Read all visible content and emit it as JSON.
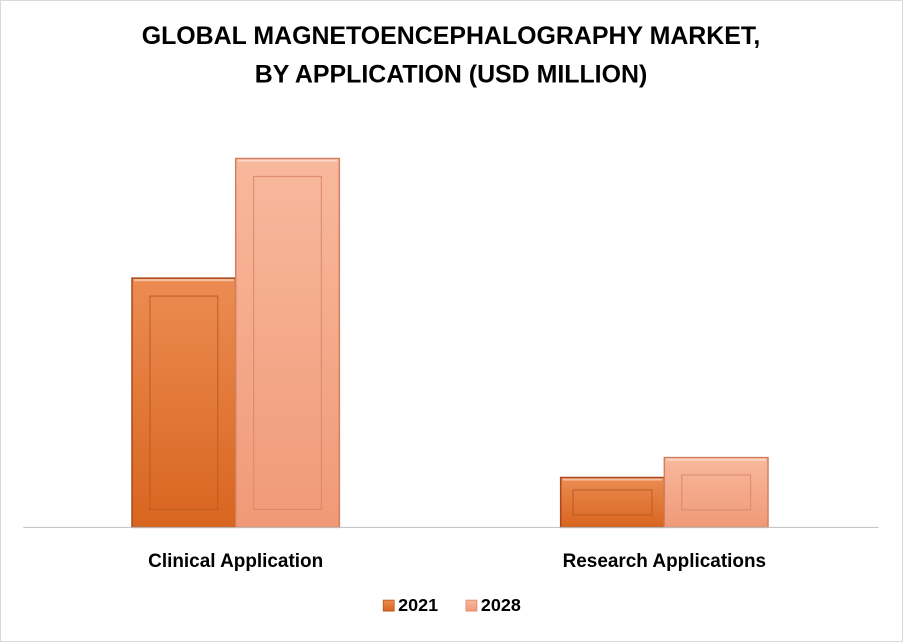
{
  "chart_data": {
    "type": "bar",
    "title_lines": [
      "GLOBAL MAGNETOENCEPHALOGRAPHY  MARKET,",
      "BY APPLICATION  (USD MILLION)"
    ],
    "categories": [
      "Clinical Application",
      "Research Applications"
    ],
    "series": [
      {
        "name": "2021",
        "values": [
          100,
          20
        ],
        "color": "#E07A3A"
      },
      {
        "name": "2028",
        "values": [
          148,
          28
        ],
        "color": "#F4A585"
      }
    ],
    "ylim": [
      0,
      160
    ],
    "legend_position": "bottom",
    "grid": false
  }
}
